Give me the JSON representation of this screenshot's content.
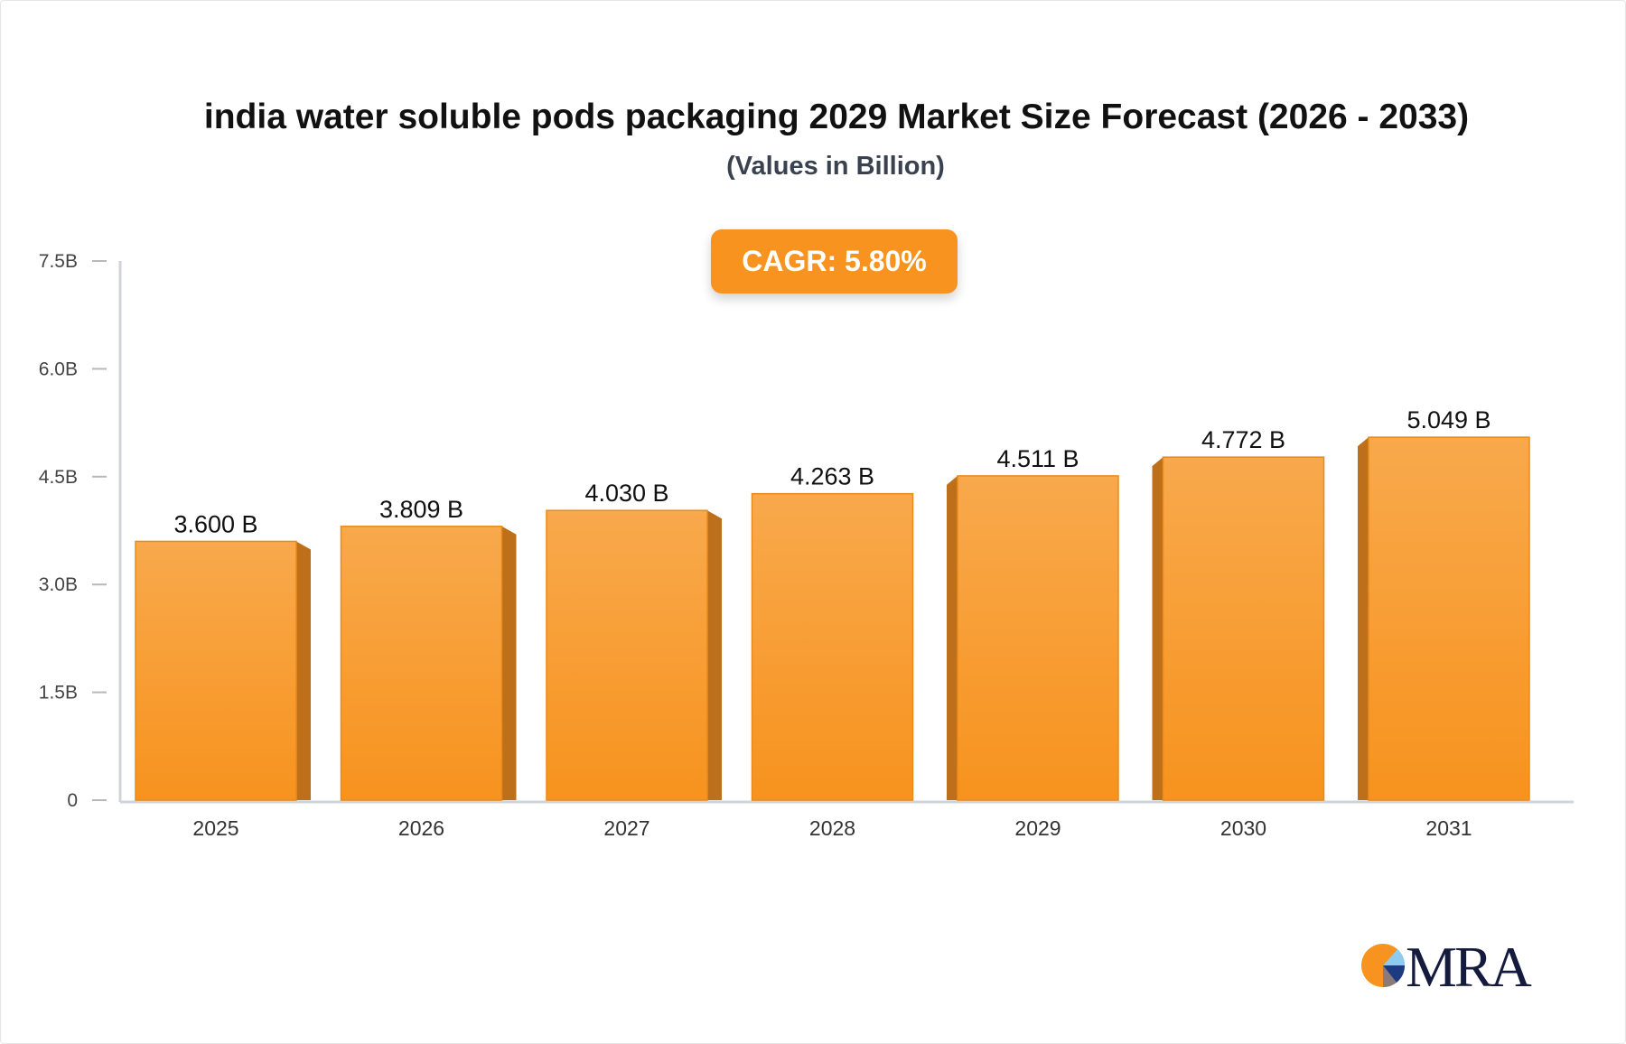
{
  "chart_data": {
    "type": "bar",
    "title": "india water soluble pods packaging 2029 Market Size Forecast (2026 - 2033)",
    "subtitle": "(Values in Billion)",
    "annotation": "CAGR: 5.80%",
    "categories": [
      "2025",
      "2026",
      "2027",
      "2028",
      "2029",
      "2030",
      "2031"
    ],
    "values": [
      3.6,
      3.809,
      4.03,
      4.263,
      4.511,
      4.772,
      5.049
    ],
    "data_labels": [
      "3.600 B",
      "3.809 B",
      "4.030 B",
      "4.263 B",
      "4.511 B",
      "4.772 B",
      "5.049 B"
    ],
    "yticks": [
      0,
      1.5,
      3.0,
      4.5,
      6.0,
      7.5
    ],
    "ytick_labels": [
      "0",
      "1.5B",
      "3.0B",
      "4.5B",
      "6.0B",
      "7.5B"
    ],
    "ylim": [
      0,
      7.5
    ],
    "xlabel": "",
    "ylabel": "",
    "grid": false,
    "colors": {
      "bar": "#f7931e",
      "bar_top": "#f8a94c",
      "bar_side": "#bd7019",
      "axis": "#d0d3da"
    }
  },
  "logo": {
    "text": "MRA"
  }
}
